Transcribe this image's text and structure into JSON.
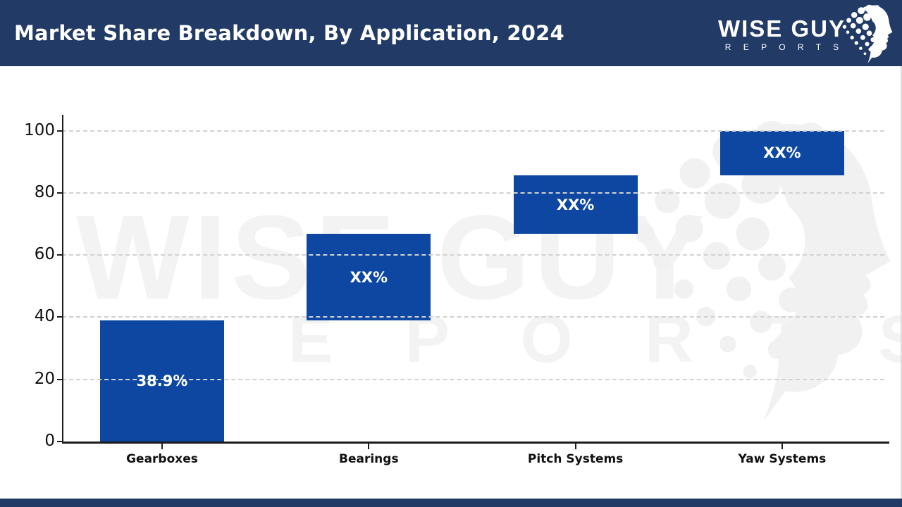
{
  "header": {
    "title": "Market Share Breakdown, By Application, 2024"
  },
  "logo": {
    "line1": "WISE GUY",
    "line2": "R E P O R T S",
    "head_icon": "dotted-face-profile"
  },
  "watermark": {
    "line1": "WISE GUY",
    "line2": "R E P O R T S"
  },
  "colors": {
    "header_bg": "#213a66",
    "footer_bg": "#213a66",
    "bar_blue": "#0d47a1",
    "bar_label_text": "#ffffff",
    "grid_line": "#d2d2d2",
    "axis_line": "#1c1c1c",
    "watermark_gray": "#f3f3f3"
  },
  "chart_data": {
    "type": "bar",
    "subtype": "waterfall",
    "title": "Market Share Breakdown, By Application, 2024",
    "xlabel": "",
    "ylabel": "",
    "categories": [
      "Gearboxes",
      "Bearings",
      "Pitch Systems",
      "Yaw Systems"
    ],
    "segments": [
      {
        "category": "Gearboxes",
        "start": 0,
        "end": 38.9,
        "label": "38.9%"
      },
      {
        "category": "Bearings",
        "start": 38.9,
        "end": 66.8,
        "label": "XX%"
      },
      {
        "category": "Pitch Systems",
        "start": 66.8,
        "end": 85.6,
        "label": "XX%"
      },
      {
        "category": "Yaw Systems",
        "start": 85.6,
        "end": 100,
        "label": "XX%"
      }
    ],
    "yticks": [
      0,
      20,
      40,
      60,
      80,
      100
    ],
    "ylim": [
      0,
      105
    ],
    "grid": "horizontal-dashed",
    "legend": "none"
  }
}
